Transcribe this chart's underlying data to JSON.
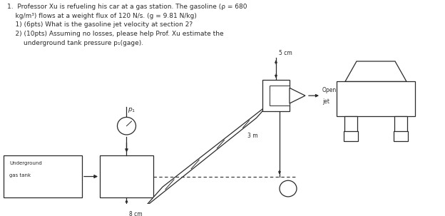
{
  "bg_color": "#ffffff",
  "line_color": "#2a2a2a",
  "fig_width": 6.24,
  "fig_height": 3.03,
  "dpi": 100,
  "text_lines": [
    "1.  Professor Xu is refueling his car at a gas station. The gasoline (ρ = 680",
    "    kg/m³) flows at a weight flux of 120 N/s. (g = 9.81 N/kg)",
    "    1) (6pts) What is the gasoline jet velocity at section 2?",
    "    2) (10pts) Assuming no losses, please help Prof. Xu estimate the",
    "        underground tank pressure p₁(gage)."
  ]
}
